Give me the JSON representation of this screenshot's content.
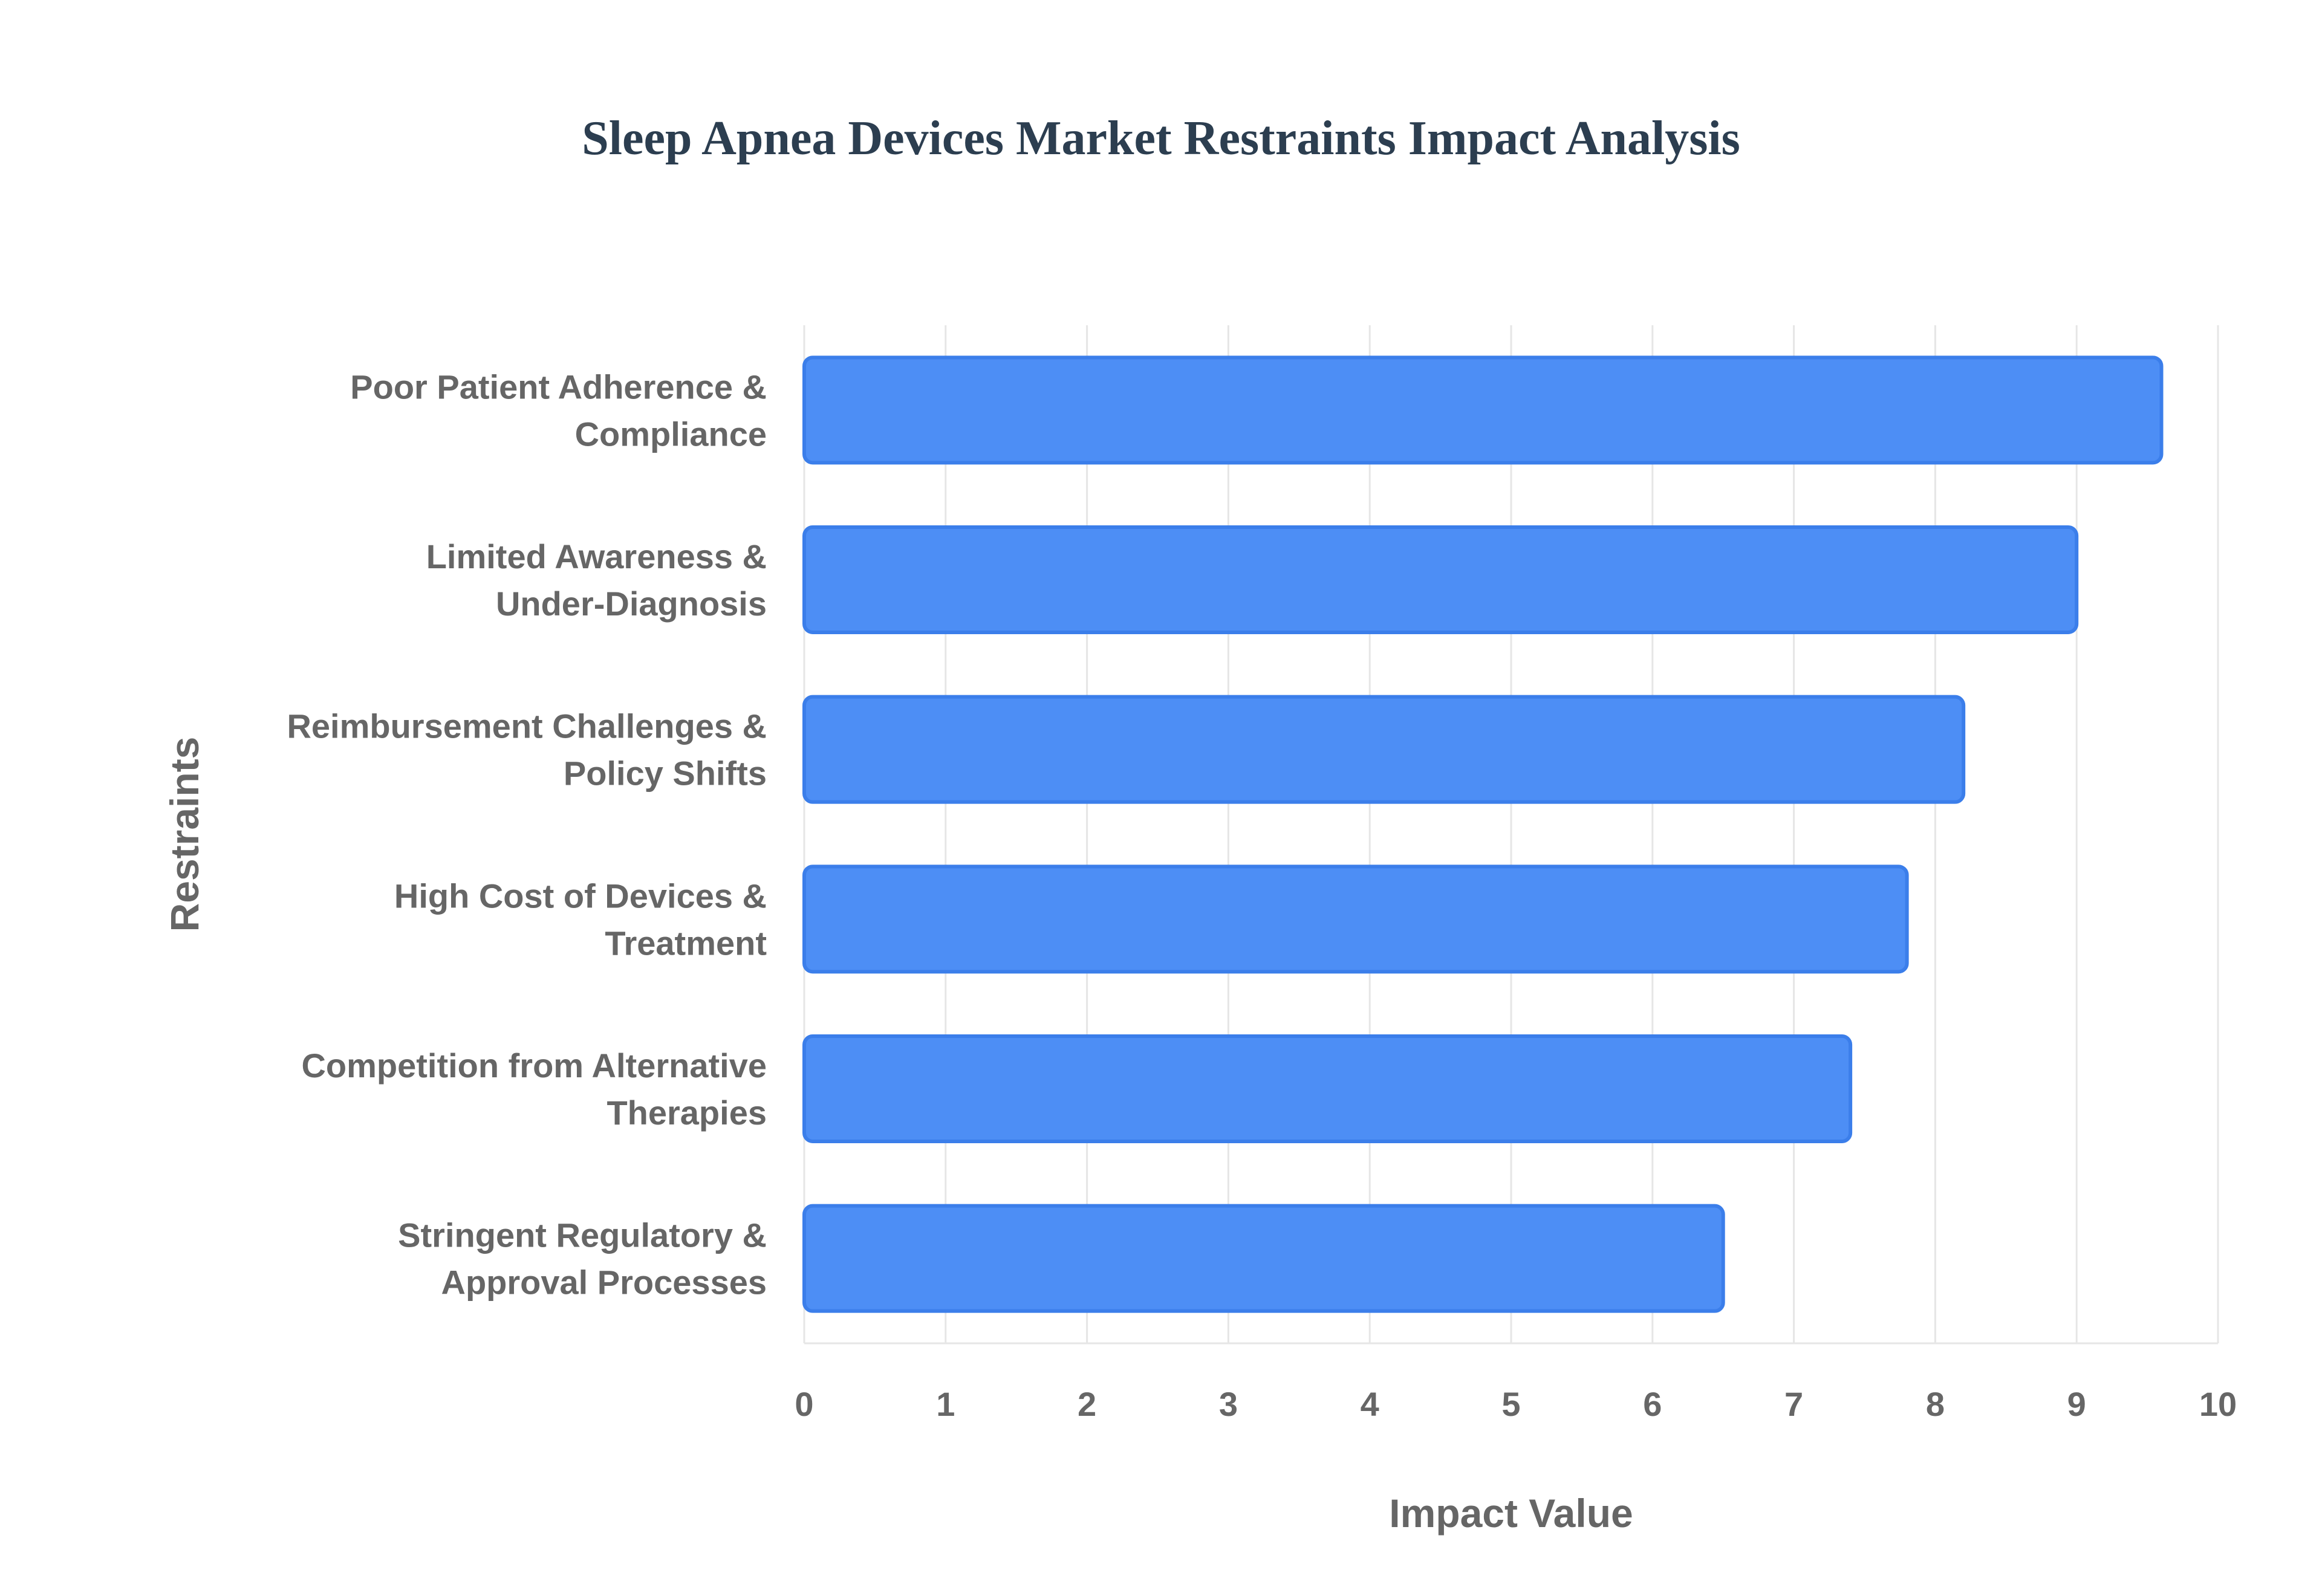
{
  "chart_data": {
    "type": "bar",
    "orientation": "horizontal",
    "title": "Sleep Apnea Devices Market Restraints Impact Analysis",
    "xlabel": "Impact Value",
    "ylabel": "Restraints",
    "categories": [
      [
        "Poor Patient Adherence &",
        "Compliance"
      ],
      [
        "Limited Awareness &",
        "Under-Diagnosis"
      ],
      [
        "Reimbursement Challenges &",
        "Policy Shifts"
      ],
      [
        "High Cost of Devices &",
        "Treatment"
      ],
      [
        "Competition from Alternative",
        "Therapies"
      ],
      [
        "Stringent Regulatory &",
        "Approval Processes"
      ]
    ],
    "values": [
      9.6,
      9.0,
      8.2,
      7.8,
      7.4,
      6.5
    ],
    "xlim": [
      0,
      10
    ],
    "xticks": [
      "0",
      "1",
      "2",
      "3",
      "4",
      "5",
      "6",
      "7",
      "8",
      "9",
      "10"
    ],
    "grid": true,
    "legend": "none",
    "colors": {
      "bar_fill": "#4d8ef5",
      "bar_stroke": "#3b7eea",
      "title": "#2c3e50",
      "text": "#666666",
      "grid": "#e6e6e6"
    }
  }
}
